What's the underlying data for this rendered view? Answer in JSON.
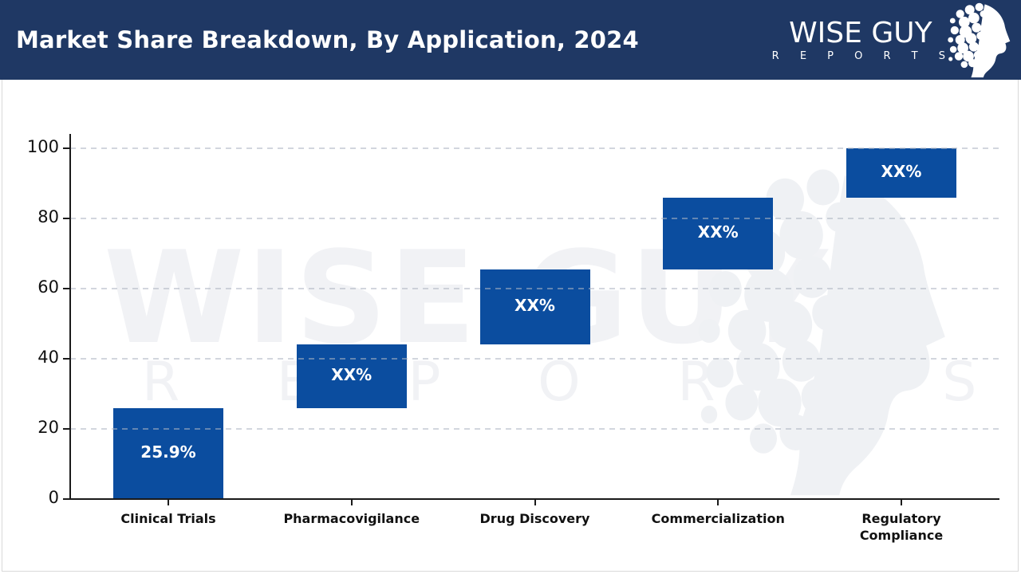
{
  "header": {
    "title": "Market Share Breakdown, By Application, 2024",
    "logo": {
      "line1": "WISE GUY",
      "line2": "R E P O R T S"
    }
  },
  "watermark": {
    "line1": "WISE GUY",
    "line2": "R E P O R T S"
  },
  "colors": {
    "header_bg": "#1f3864",
    "bar": "#0b4d9f",
    "axis": "#1a1a1a",
    "grid_dash": "rgba(173,181,194,0.55)",
    "bar_label_text": "#ffffff",
    "tick_text": "#111111",
    "watermark": "#f1f2f5"
  },
  "chart_data": {
    "type": "bar",
    "subtype": "waterfall",
    "title": "Market Share Breakdown, By Application, 2024",
    "xlabel": "",
    "ylabel": "",
    "ylim": [
      0,
      100
    ],
    "yticks": [
      0,
      20,
      40,
      60,
      80,
      100
    ],
    "grid": "horizontal-dashed",
    "legend": "none",
    "categories": [
      "Clinical Trials",
      "Pharmacovigilance",
      "Drug Discovery",
      "Commercialization",
      "Regulatory Compliance"
    ],
    "segments": [
      {
        "category": "Clinical Trials",
        "start": 0,
        "end": 25.9,
        "label": "25.9%"
      },
      {
        "category": "Pharmacovigilance",
        "start": 25.9,
        "end": 44.0,
        "label": "XX%"
      },
      {
        "category": "Drug Discovery",
        "start": 44.0,
        "end": 65.5,
        "label": "XX%"
      },
      {
        "category": "Commercialization",
        "start": 65.5,
        "end": 85.8,
        "label": "XX%"
      },
      {
        "category": "Regulatory Compliance",
        "start": 85.8,
        "end": 100,
        "label": "XX%"
      }
    ]
  }
}
